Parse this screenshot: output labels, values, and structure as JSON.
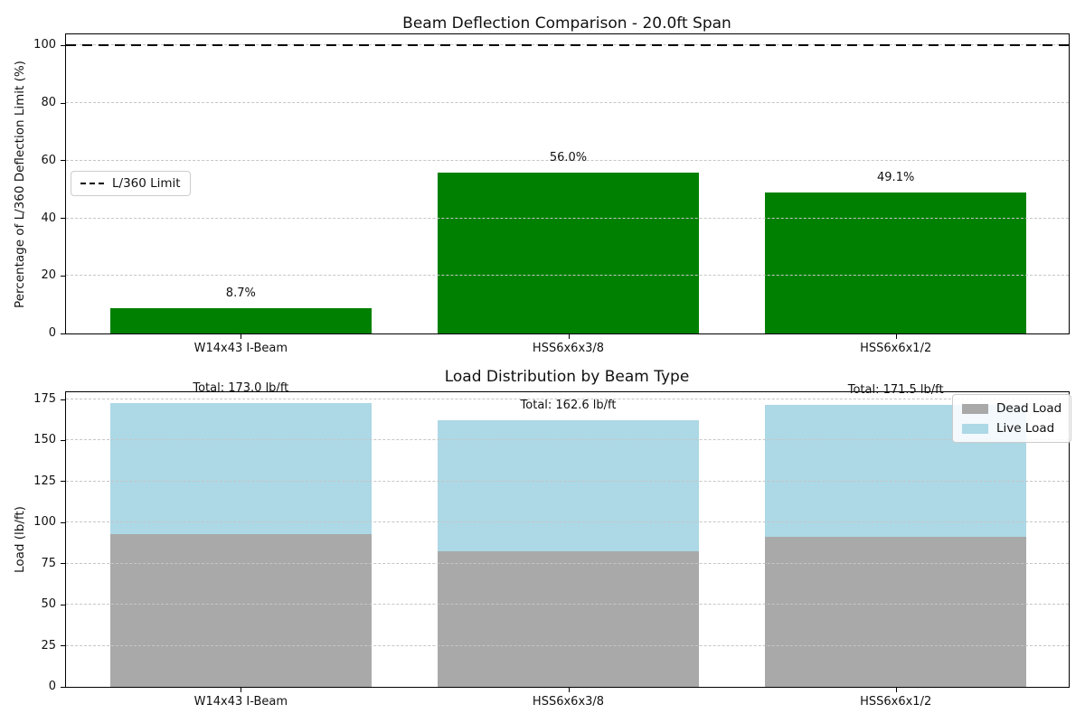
{
  "figure": {
    "background": "#ffffff"
  },
  "chart_data": [
    {
      "type": "bar",
      "title": "Beam Deflection Comparison - 20.0ft Span",
      "xlabel": "",
      "ylabel": "Percentage of L/360 Deflection Limit (%)",
      "categories": [
        "W14x43 I-Beam",
        "HSS6x6x3/8",
        "HSS6x6x1/2"
      ],
      "values": [
        8.7,
        56.0,
        49.1
      ],
      "bar_labels": [
        "8.7%",
        "56.0%",
        "49.1%"
      ],
      "bar_color": "#008000",
      "yticks": [
        0,
        20,
        40,
        60,
        80,
        100
      ],
      "ylim": [
        0,
        104.5
      ],
      "grid": true,
      "grid_style": "dashed",
      "reference_line": {
        "value": 100,
        "label": "L/360 Limit",
        "color": "#000000",
        "linestyle": "dashed"
      },
      "legend_position": "center-left"
    },
    {
      "type": "stacked-bar",
      "title": "Load Distribution by Beam Type",
      "xlabel": "",
      "ylabel": "Load (lb/ft)",
      "categories": [
        "W14x43 I-Beam",
        "HSS6x6x3/8",
        "HSS6x6x1/2"
      ],
      "series": [
        {
          "name": "Dead Load",
          "color": "#a9a9a9",
          "values": [
            93.0,
            82.6,
            91.5
          ]
        },
        {
          "name": "Live Load",
          "color": "#add8e6",
          "values": [
            80.0,
            80.0,
            80.0
          ]
        }
      ],
      "totals": [
        173.0,
        162.6,
        171.5
      ],
      "total_labels": [
        "Total: 173.0 lb/ft",
        "Total: 162.6 lb/ft",
        "Total: 171.5 lb/ft"
      ],
      "yticks": [
        0,
        25,
        50,
        75,
        100,
        125,
        150,
        175
      ],
      "ylim": [
        0,
        180.5
      ],
      "grid": true,
      "grid_style": "dashed",
      "legend_position": "upper-right"
    }
  ]
}
